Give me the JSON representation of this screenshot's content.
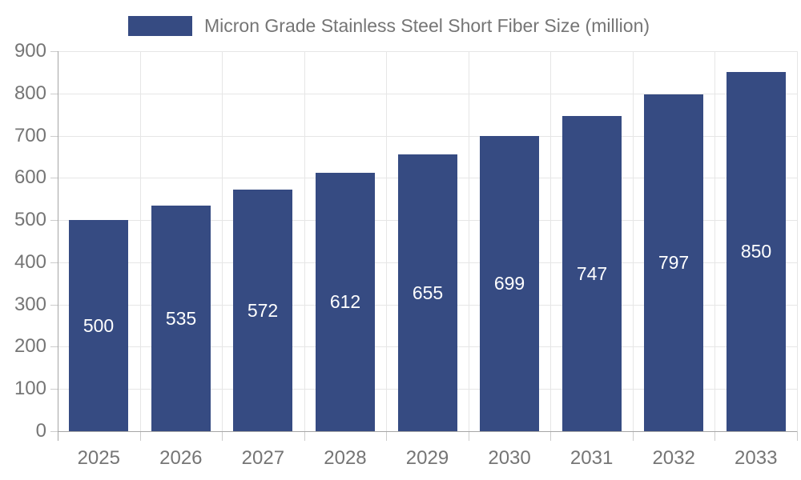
{
  "chart_data": {
    "type": "bar",
    "title": "Micron Grade Stainless Steel Short Fiber Size (million)",
    "legend_position": "top",
    "categories": [
      "2025",
      "2026",
      "2027",
      "2028",
      "2029",
      "2030",
      "2031",
      "2032",
      "2033"
    ],
    "values": [
      500,
      535,
      572,
      612,
      655,
      699,
      747,
      797,
      850
    ],
    "xlabel": "",
    "ylabel": "",
    "ylim": [
      0,
      900
    ],
    "yticks": [
      0,
      100,
      200,
      300,
      400,
      500,
      600,
      700,
      800,
      900
    ],
    "grid": true,
    "bar_value_labels_visible": true,
    "colors": {
      "bar": "#364b82",
      "bar_label": "#ffffff",
      "axis_text": "#757575",
      "legend_text": "#757575",
      "grid_line": "#e6e6e6",
      "axis_line": "#a6a6a6",
      "tick_line": "#cccccc",
      "background": "#ffffff"
    }
  }
}
